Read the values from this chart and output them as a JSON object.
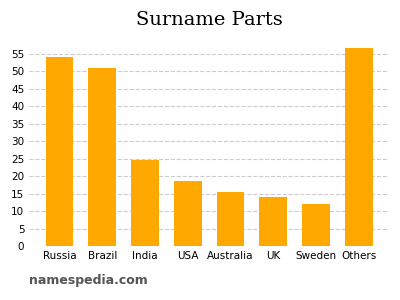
{
  "title": "Surname Parts",
  "categories": [
    "Russia",
    "Brazil",
    "India",
    "USA",
    "Australia",
    "UK",
    "Sweden",
    "Others"
  ],
  "values": [
    54,
    51,
    24.5,
    18.5,
    15.5,
    14,
    12,
    56.5
  ],
  "bar_color": "#FFA800",
  "ylim": [
    0,
    60
  ],
  "yticks": [
    0,
    5,
    10,
    15,
    20,
    25,
    30,
    35,
    40,
    45,
    50,
    55
  ],
  "grid_color": "#cccccc",
  "background_color": "#ffffff",
  "watermark": "namespedia.com",
  "title_fontsize": 14,
  "tick_fontsize": 7.5,
  "watermark_fontsize": 9
}
